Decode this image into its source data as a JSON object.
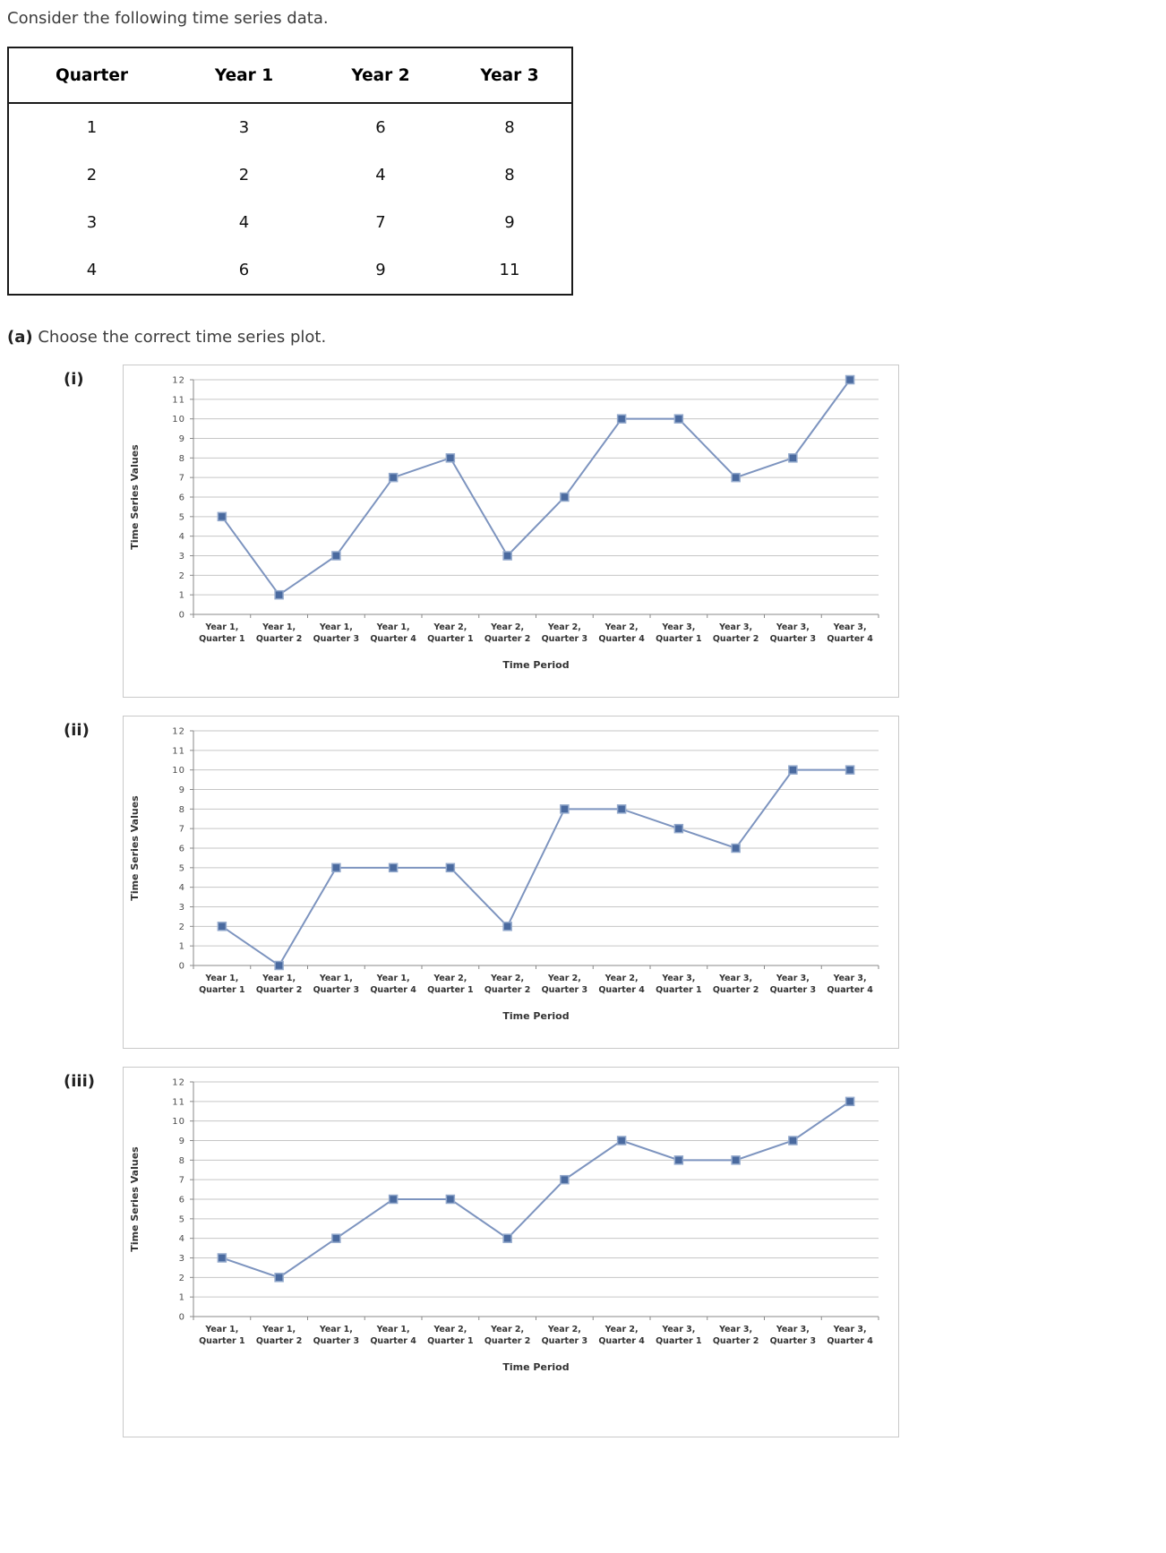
{
  "intro": "Consider the following time series data.",
  "table": {
    "headers": [
      "Quarter",
      "Year 1",
      "Year 2",
      "Year 3"
    ],
    "rows": [
      [
        "1",
        "3",
        "6",
        "8"
      ],
      [
        "2",
        "2",
        "4",
        "8"
      ],
      [
        "3",
        "4",
        "7",
        "9"
      ],
      [
        "4",
        "6",
        "9",
        "11"
      ]
    ]
  },
  "part_a": {
    "label": "(a)",
    "text": "Choose the correct time series plot."
  },
  "chart_style": {
    "line_color": "#7d94bf",
    "marker_fill": "#4a6a9f",
    "marker_stroke": "#93a9cc",
    "grid_color": "#c6c6c6",
    "axis_color": "#8a8a8a"
  },
  "chart_data": [
    {
      "type": "line",
      "option_label": "(i)",
      "categories": [
        [
          "Year 1,",
          "Quarter 1"
        ],
        [
          "Year 1,",
          "Quarter 2"
        ],
        [
          "Year 1,",
          "Quarter 3"
        ],
        [
          "Year 1,",
          "Quarter 4"
        ],
        [
          "Year 2,",
          "Quarter 1"
        ],
        [
          "Year 2,",
          "Quarter 2"
        ],
        [
          "Year 2,",
          "Quarter 3"
        ],
        [
          "Year 2,",
          "Quarter 4"
        ],
        [
          "Year 3,",
          "Quarter 1"
        ],
        [
          "Year 3,",
          "Quarter 2"
        ],
        [
          "Year 3,",
          "Quarter 3"
        ],
        [
          "Year 3,",
          "Quarter 4"
        ]
      ],
      "values": [
        5,
        1,
        3,
        7,
        8,
        3,
        6,
        10,
        10,
        7,
        8,
        12
      ],
      "title": "",
      "xlabel": "Time Period",
      "ylabel": "Time Series Values",
      "ylim": [
        0,
        12
      ],
      "ytick_step": 1,
      "grid": true,
      "legend": false,
      "marker": "square"
    },
    {
      "type": "line",
      "option_label": "(ii)",
      "categories": [
        [
          "Year 1,",
          "Quarter 1"
        ],
        [
          "Year 1,",
          "Quarter 2"
        ],
        [
          "Year 1,",
          "Quarter 3"
        ],
        [
          "Year 1,",
          "Quarter 4"
        ],
        [
          "Year 2,",
          "Quarter 1"
        ],
        [
          "Year 2,",
          "Quarter 2"
        ],
        [
          "Year 2,",
          "Quarter 3"
        ],
        [
          "Year 2,",
          "Quarter 4"
        ],
        [
          "Year 3,",
          "Quarter 1"
        ],
        [
          "Year 3,",
          "Quarter 2"
        ],
        [
          "Year 3,",
          "Quarter 3"
        ],
        [
          "Year 3,",
          "Quarter 4"
        ]
      ],
      "values": [
        2,
        0,
        5,
        5,
        5,
        2,
        8,
        8,
        7,
        6,
        10,
        10
      ],
      "title": "",
      "xlabel": "Time Period",
      "ylabel": "Time Series Values",
      "ylim": [
        0,
        12
      ],
      "ytick_step": 1,
      "grid": true,
      "legend": false,
      "marker": "square"
    },
    {
      "type": "line",
      "option_label": "(iii)",
      "categories": [
        [
          "Year 1,",
          "Quarter 1"
        ],
        [
          "Year 1,",
          "Quarter 2"
        ],
        [
          "Year 1,",
          "Quarter 3"
        ],
        [
          "Year 1,",
          "Quarter 4"
        ],
        [
          "Year 2,",
          "Quarter 1"
        ],
        [
          "Year 2,",
          "Quarter 2"
        ],
        [
          "Year 2,",
          "Quarter 3"
        ],
        [
          "Year 2,",
          "Quarter 4"
        ],
        [
          "Year 3,",
          "Quarter 1"
        ],
        [
          "Year 3,",
          "Quarter 2"
        ],
        [
          "Year 3,",
          "Quarter 3"
        ],
        [
          "Year 3,",
          "Quarter 4"
        ]
      ],
      "values": [
        3,
        2,
        4,
        6,
        6,
        4,
        7,
        9,
        8,
        8,
        9,
        11
      ],
      "title": "",
      "xlabel": "Time Period",
      "ylabel": "Time Series Values",
      "ylim": [
        0,
        12
      ],
      "ytick_step": 1,
      "grid": true,
      "legend": false,
      "marker": "square"
    }
  ]
}
